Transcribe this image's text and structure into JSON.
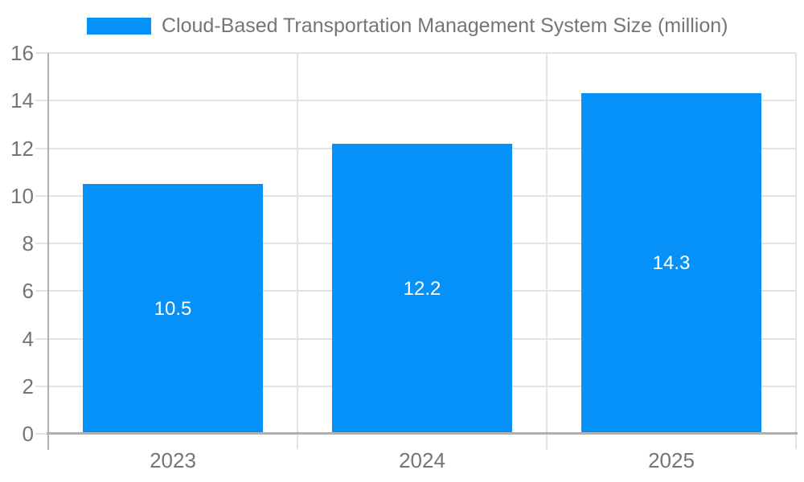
{
  "chart_data": {
    "type": "bar",
    "title": "Cloud-Based Transportation Management System Size (million)",
    "categories": [
      "2023",
      "2024",
      "2025"
    ],
    "values": [
      10.5,
      12.2,
      14.3
    ],
    "data_labels": [
      "10.5",
      "12.2",
      "14.3"
    ],
    "xlabel": "",
    "ylabel": "",
    "ylim": [
      0,
      16
    ],
    "yticks": [
      0,
      2,
      4,
      6,
      8,
      10,
      12,
      14,
      16
    ],
    "grid": true,
    "legend_position": "top-left",
    "legend_entries": [
      "Cloud-Based Transportation Management System Size (million)"
    ]
  },
  "colors": {
    "bar": "#0591f8",
    "tick_label": "#757575",
    "title_text": "#757575",
    "gridline": "#e3e3e3",
    "axis_line": "#b0b0b0",
    "data_label": "#ffffff",
    "background": "#ffffff"
  }
}
